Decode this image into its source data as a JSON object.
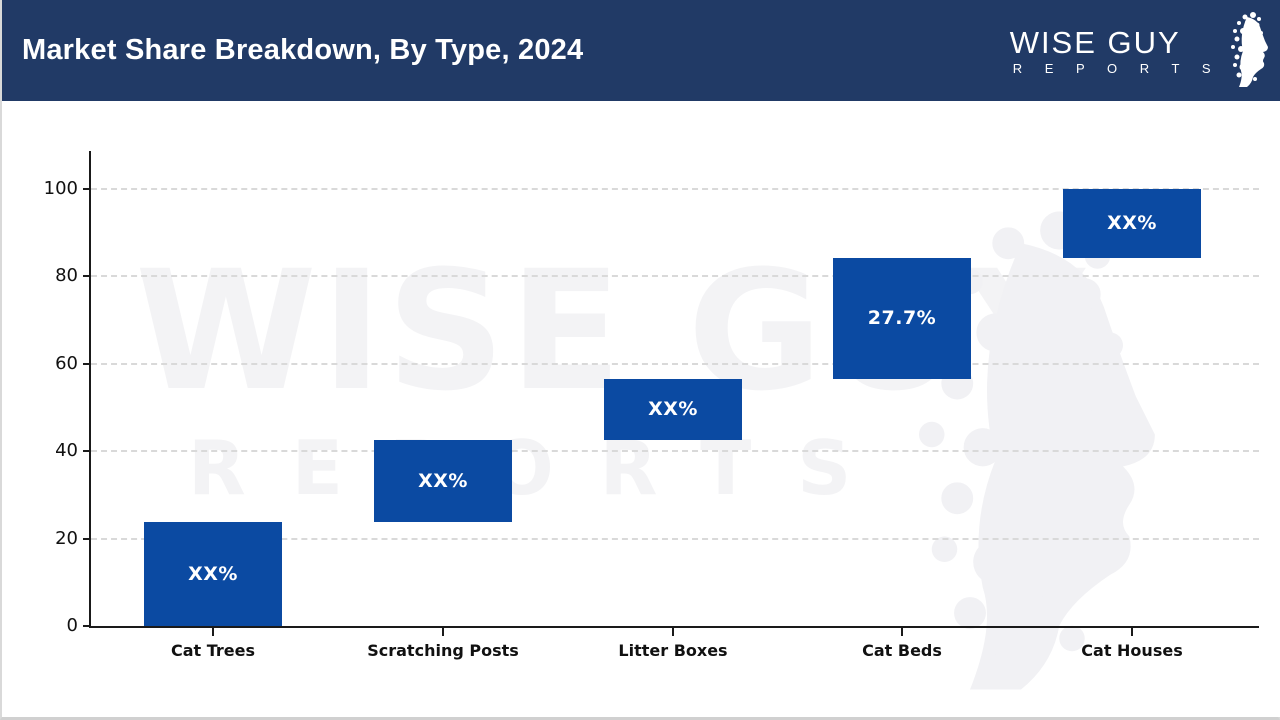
{
  "header": {
    "title": "Market Share Breakdown, By Type, 2024",
    "logo_line1": "WISE GUY",
    "logo_line2": "R E P O R T S"
  },
  "watermark": {
    "line1": "WISE GUY",
    "line2": "REPORTS"
  },
  "colors": {
    "header_bg": "#213a66",
    "bar": "#0b4aa2",
    "bar_label": "#ffffff",
    "gridline": "#d9d9d9",
    "watermark": "#f3f3f5",
    "axis_text": "#111111"
  },
  "chart_data": {
    "type": "bar",
    "subtype": "waterfall",
    "title": "Market Share Breakdown, By Type, 2024",
    "xlabel": "",
    "ylabel": "",
    "categories": [
      "Cat Trees",
      "Scratching Posts",
      "Litter Boxes",
      "Cat Beds",
      "Cat Houses"
    ],
    "segments": [
      {
        "category": "Cat Trees",
        "start": 0,
        "end": 23.8,
        "label": "XX%"
      },
      {
        "category": "Scratching Posts",
        "start": 23.8,
        "end": 42.5,
        "label": "XX%"
      },
      {
        "category": "Litter Boxes",
        "start": 42.5,
        "end": 56.5,
        "label": "XX%"
      },
      {
        "category": "Cat Beds",
        "start": 56.5,
        "end": 84.2,
        "label": "27.7%"
      },
      {
        "category": "Cat Houses",
        "start": 84.2,
        "end": 100,
        "label": "XX%"
      }
    ],
    "ylim": [
      0,
      100
    ],
    "yticks": [
      0,
      20,
      40,
      60,
      80,
      100
    ],
    "grid": "horizontal-dashed",
    "legend": "none"
  }
}
